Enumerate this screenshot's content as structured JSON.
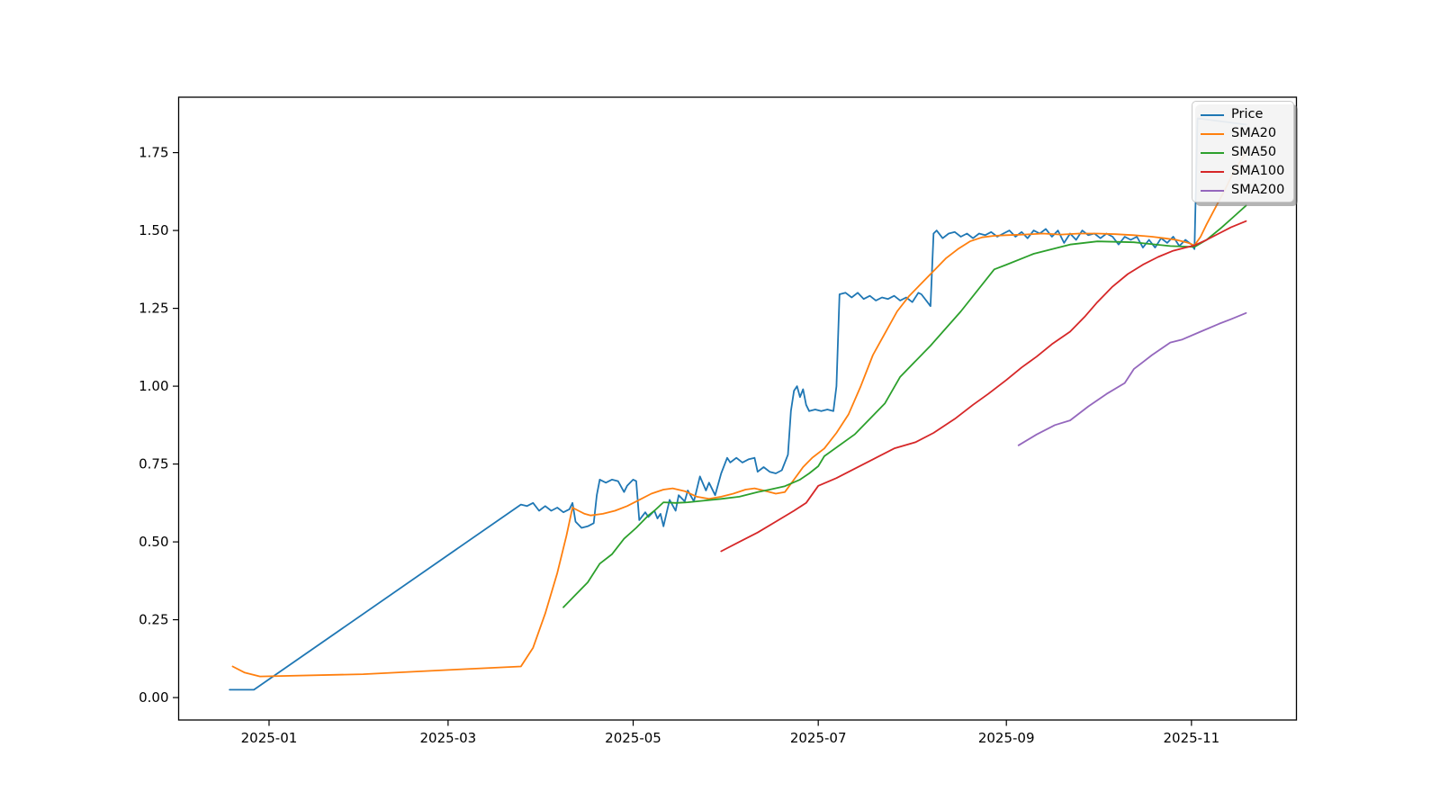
{
  "figure": {
    "background": "#ffffff"
  },
  "chart_data": {
    "type": "line",
    "title": "",
    "xlabel": "",
    "ylabel": "",
    "grid": false,
    "x_unit": "days since 2024-12-19",
    "xlim": [
      -16.8,
      351.6
    ],
    "ylim": [
      -0.072,
      1.928
    ],
    "x_ticks": [
      {
        "d": 13,
        "label": "2025-01"
      },
      {
        "d": 72,
        "label": "2025-03"
      },
      {
        "d": 133,
        "label": "2025-05"
      },
      {
        "d": 194,
        "label": "2025-07"
      },
      {
        "d": 256,
        "label": "2025-09"
      },
      {
        "d": 317,
        "label": "2025-11"
      }
    ],
    "y_ticks": [
      {
        "v": 0.0,
        "label": "0.00"
      },
      {
        "v": 0.25,
        "label": "0.25"
      },
      {
        "v": 0.5,
        "label": "0.50"
      },
      {
        "v": 0.75,
        "label": "0.75"
      },
      {
        "v": 1.0,
        "label": "1.00"
      },
      {
        "v": 1.25,
        "label": "1.25"
      },
      {
        "v": 1.5,
        "label": "1.50"
      },
      {
        "v": 1.75,
        "label": "1.75"
      }
    ],
    "legend": {
      "position": "upper right",
      "entries": [
        {
          "label": "Price",
          "color": "#1f77b4"
        },
        {
          "label": "SMA20",
          "color": "#ff7f0e"
        },
        {
          "label": "SMA50",
          "color": "#2ca02c"
        },
        {
          "label": "SMA100",
          "color": "#d62728"
        },
        {
          "label": "SMA200",
          "color": "#9467bd"
        }
      ]
    },
    "series": [
      {
        "name": "Price",
        "color": "#1f77b4",
        "points": [
          [
            0,
            0.025
          ],
          [
            8,
            0.025
          ],
          [
            96,
            0.62
          ],
          [
            98,
            0.615
          ],
          [
            100,
            0.625
          ],
          [
            102,
            0.6
          ],
          [
            104,
            0.615
          ],
          [
            106,
            0.6
          ],
          [
            108,
            0.61
          ],
          [
            110,
            0.595
          ],
          [
            112,
            0.605
          ],
          [
            113,
            0.625
          ],
          [
            114,
            0.565
          ],
          [
            116,
            0.545
          ],
          [
            118,
            0.55
          ],
          [
            120,
            0.56
          ],
          [
            121,
            0.65
          ],
          [
            122,
            0.7
          ],
          [
            124,
            0.69
          ],
          [
            126,
            0.7
          ],
          [
            128,
            0.695
          ],
          [
            130,
            0.66
          ],
          [
            131,
            0.68
          ],
          [
            133,
            0.7
          ],
          [
            134,
            0.695
          ],
          [
            135,
            0.57
          ],
          [
            137,
            0.595
          ],
          [
            138,
            0.58
          ],
          [
            140,
            0.6
          ],
          [
            141,
            0.575
          ],
          [
            142,
            0.59
          ],
          [
            143,
            0.55
          ],
          [
            145,
            0.635
          ],
          [
            147,
            0.6
          ],
          [
            148,
            0.65
          ],
          [
            150,
            0.63
          ],
          [
            151,
            0.665
          ],
          [
            153,
            0.63
          ],
          [
            155,
            0.71
          ],
          [
            157,
            0.665
          ],
          [
            158,
            0.69
          ],
          [
            160,
            0.65
          ],
          [
            162,
            0.72
          ],
          [
            164,
            0.77
          ],
          [
            165,
            0.755
          ],
          [
            167,
            0.77
          ],
          [
            169,
            0.755
          ],
          [
            171,
            0.765
          ],
          [
            173,
            0.77
          ],
          [
            174,
            0.725
          ],
          [
            176,
            0.74
          ],
          [
            178,
            0.725
          ],
          [
            180,
            0.72
          ],
          [
            182,
            0.73
          ],
          [
            184,
            0.78
          ],
          [
            185,
            0.92
          ],
          [
            186,
            0.985
          ],
          [
            187,
            1.0
          ],
          [
            188,
            0.965
          ],
          [
            189,
            0.99
          ],
          [
            190,
            0.94
          ],
          [
            191,
            0.92
          ],
          [
            193,
            0.925
          ],
          [
            195,
            0.92
          ],
          [
            197,
            0.925
          ],
          [
            199,
            0.92
          ],
          [
            200,
            1.0
          ],
          [
            201,
            1.295
          ],
          [
            203,
            1.3
          ],
          [
            205,
            1.285
          ],
          [
            207,
            1.3
          ],
          [
            209,
            1.28
          ],
          [
            211,
            1.29
          ],
          [
            213,
            1.275
          ],
          [
            215,
            1.285
          ],
          [
            217,
            1.28
          ],
          [
            219,
            1.29
          ],
          [
            221,
            1.275
          ],
          [
            223,
            1.285
          ],
          [
            225,
            1.27
          ],
          [
            227,
            1.3
          ],
          [
            228,
            1.295
          ],
          [
            230,
            1.27
          ],
          [
            231,
            1.257
          ],
          [
            232,
            1.49
          ],
          [
            233,
            1.5
          ],
          [
            235,
            1.475
          ],
          [
            237,
            1.49
          ],
          [
            239,
            1.495
          ],
          [
            241,
            1.48
          ],
          [
            243,
            1.49
          ],
          [
            245,
            1.475
          ],
          [
            247,
            1.49
          ],
          [
            249,
            1.485
          ],
          [
            251,
            1.495
          ],
          [
            253,
            1.48
          ],
          [
            255,
            1.49
          ],
          [
            257,
            1.5
          ],
          [
            259,
            1.48
          ],
          [
            261,
            1.495
          ],
          [
            263,
            1.475
          ],
          [
            265,
            1.5
          ],
          [
            267,
            1.49
          ],
          [
            269,
            1.505
          ],
          [
            271,
            1.48
          ],
          [
            273,
            1.5
          ],
          [
            275,
            1.46
          ],
          [
            277,
            1.49
          ],
          [
            279,
            1.47
          ],
          [
            281,
            1.5
          ],
          [
            283,
            1.485
          ],
          [
            285,
            1.49
          ],
          [
            287,
            1.475
          ],
          [
            289,
            1.49
          ],
          [
            291,
            1.48
          ],
          [
            293,
            1.455
          ],
          [
            295,
            1.48
          ],
          [
            297,
            1.47
          ],
          [
            299,
            1.48
          ],
          [
            301,
            1.445
          ],
          [
            303,
            1.47
          ],
          [
            305,
            1.445
          ],
          [
            307,
            1.475
          ],
          [
            309,
            1.46
          ],
          [
            311,
            1.48
          ],
          [
            313,
            1.45
          ],
          [
            315,
            1.47
          ],
          [
            317,
            1.455
          ],
          [
            318,
            1.44
          ],
          [
            319,
            1.86
          ],
          [
            335,
            1.84
          ]
        ]
      },
      {
        "name": "SMA20",
        "color": "#ff7f0e",
        "points": [
          [
            1,
            0.1
          ],
          [
            5,
            0.08
          ],
          [
            10,
            0.068
          ],
          [
            44,
            0.075
          ],
          [
            75,
            0.09
          ],
          [
            96,
            0.1
          ],
          [
            100,
            0.16
          ],
          [
            104,
            0.27
          ],
          [
            108,
            0.4
          ],
          [
            111,
            0.52
          ],
          [
            113,
            0.61
          ],
          [
            115,
            0.6
          ],
          [
            117,
            0.59
          ],
          [
            119,
            0.585
          ],
          [
            123,
            0.59
          ],
          [
            127,
            0.6
          ],
          [
            131,
            0.615
          ],
          [
            135,
            0.635
          ],
          [
            139,
            0.655
          ],
          [
            143,
            0.668
          ],
          [
            146,
            0.672
          ],
          [
            150,
            0.663
          ],
          [
            154,
            0.645
          ],
          [
            158,
            0.638
          ],
          [
            162,
            0.645
          ],
          [
            166,
            0.655
          ],
          [
            170,
            0.668
          ],
          [
            173,
            0.672
          ],
          [
            176,
            0.665
          ],
          [
            180,
            0.655
          ],
          [
            183,
            0.66
          ],
          [
            186,
            0.7
          ],
          [
            189,
            0.74
          ],
          [
            192,
            0.77
          ],
          [
            196,
            0.8
          ],
          [
            200,
            0.85
          ],
          [
            204,
            0.91
          ],
          [
            208,
            1.0
          ],
          [
            212,
            1.1
          ],
          [
            216,
            1.17
          ],
          [
            220,
            1.24
          ],
          [
            224,
            1.29
          ],
          [
            228,
            1.33
          ],
          [
            232,
            1.37
          ],
          [
            236,
            1.41
          ],
          [
            240,
            1.44
          ],
          [
            244,
            1.465
          ],
          [
            248,
            1.478
          ],
          [
            252,
            1.483
          ],
          [
            256,
            1.485
          ],
          [
            262,
            1.487
          ],
          [
            268,
            1.49
          ],
          [
            274,
            1.487
          ],
          [
            280,
            1.49
          ],
          [
            286,
            1.49
          ],
          [
            292,
            1.488
          ],
          [
            298,
            1.485
          ],
          [
            304,
            1.48
          ],
          [
            308,
            1.475
          ],
          [
            312,
            1.47
          ],
          [
            316,
            1.46
          ],
          [
            318,
            1.452
          ],
          [
            320,
            1.48
          ],
          [
            322,
            1.52
          ],
          [
            325,
            1.575
          ],
          [
            328,
            1.63
          ],
          [
            331,
            1.69
          ],
          [
            335,
            1.75
          ]
        ]
      },
      {
        "name": "SMA50",
        "color": "#2ca02c",
        "points": [
          [
            110,
            0.29
          ],
          [
            114,
            0.33
          ],
          [
            118,
            0.37
          ],
          [
            122,
            0.43
          ],
          [
            126,
            0.46
          ],
          [
            130,
            0.51
          ],
          [
            134,
            0.545
          ],
          [
            138,
            0.585
          ],
          [
            140,
            0.6
          ],
          [
            143,
            0.627
          ],
          [
            147,
            0.625
          ],
          [
            151,
            0.627
          ],
          [
            156,
            0.632
          ],
          [
            162,
            0.638
          ],
          [
            168,
            0.645
          ],
          [
            174,
            0.66
          ],
          [
            178,
            0.668
          ],
          [
            183,
            0.679
          ],
          [
            188,
            0.7
          ],
          [
            191,
            0.72
          ],
          [
            194,
            0.743
          ],
          [
            196,
            0.775
          ],
          [
            206,
            0.845
          ],
          [
            216,
            0.945
          ],
          [
            221,
            1.03
          ],
          [
            231,
            1.13
          ],
          [
            241,
            1.24
          ],
          [
            252,
            1.375
          ],
          [
            256,
            1.39
          ],
          [
            265,
            1.425
          ],
          [
            277,
            1.455
          ],
          [
            286,
            1.465
          ],
          [
            298,
            1.462
          ],
          [
            310,
            1.45
          ],
          [
            318,
            1.447
          ],
          [
            322,
            1.47
          ],
          [
            327,
            1.51
          ],
          [
            331,
            1.545
          ],
          [
            335,
            1.58
          ]
        ]
      },
      {
        "name": "SMA100",
        "color": "#d62728",
        "points": [
          [
            162,
            0.47
          ],
          [
            168,
            0.5
          ],
          [
            174,
            0.53
          ],
          [
            180,
            0.565
          ],
          [
            186,
            0.6
          ],
          [
            190,
            0.625
          ],
          [
            194,
            0.68
          ],
          [
            200,
            0.705
          ],
          [
            206,
            0.735
          ],
          [
            212,
            0.765
          ],
          [
            219,
            0.8
          ],
          [
            226,
            0.82
          ],
          [
            232,
            0.85
          ],
          [
            239,
            0.895
          ],
          [
            245,
            0.94
          ],
          [
            250,
            0.975
          ],
          [
            256,
            1.02
          ],
          [
            261,
            1.06
          ],
          [
            266,
            1.095
          ],
          [
            271,
            1.135
          ],
          [
            277,
            1.175
          ],
          [
            282,
            1.225
          ],
          [
            286,
            1.27
          ],
          [
            291,
            1.32
          ],
          [
            296,
            1.36
          ],
          [
            301,
            1.39
          ],
          [
            306,
            1.415
          ],
          [
            311,
            1.435
          ],
          [
            315,
            1.445
          ],
          [
            318,
            1.452
          ],
          [
            322,
            1.47
          ],
          [
            326,
            1.49
          ],
          [
            330,
            1.51
          ],
          [
            335,
            1.53
          ]
        ]
      },
      {
        "name": "SMA200",
        "color": "#9467bd",
        "points": [
          [
            260,
            0.81
          ],
          [
            266,
            0.845
          ],
          [
            272,
            0.875
          ],
          [
            277,
            0.89
          ],
          [
            283,
            0.935
          ],
          [
            289,
            0.975
          ],
          [
            295,
            1.01
          ],
          [
            298,
            1.055
          ],
          [
            304,
            1.1
          ],
          [
            310,
            1.14
          ],
          [
            314,
            1.15
          ],
          [
            320,
            1.175
          ],
          [
            326,
            1.2
          ],
          [
            330,
            1.215
          ],
          [
            335,
            1.235
          ]
        ]
      }
    ]
  }
}
